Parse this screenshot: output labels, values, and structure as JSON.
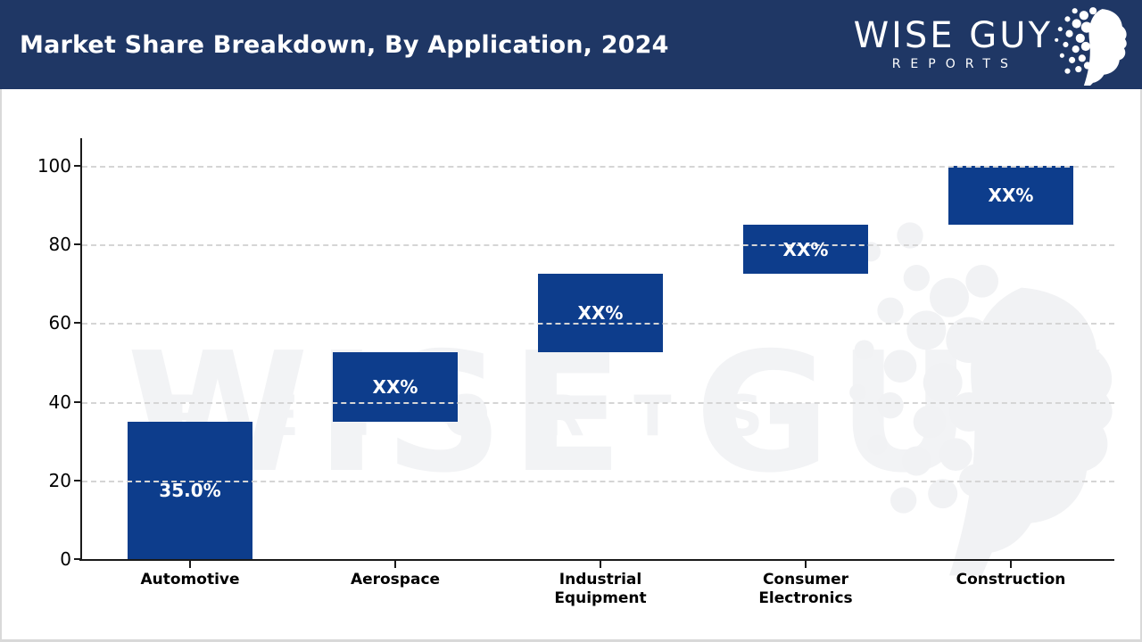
{
  "header": {
    "title": "Market Share Breakdown, By Application, 2024",
    "logo": {
      "line1": "WISE GUY",
      "line2": "REPORTS",
      "face_icon": "dotted-head-profile"
    }
  },
  "watermark": {
    "line1": "WISE GUY",
    "line2": "REPORTS",
    "face_icon": "dotted-head-profile"
  },
  "chart_data": {
    "type": "bar",
    "subtype": "waterfall",
    "title": "Market Share Breakdown, By Application, 2024",
    "categories": [
      "Automotive",
      "Aerospace",
      "Industrial\nEquipment",
      "Consumer\nElectronics",
      "Construction"
    ],
    "segments": [
      {
        "category": "Automotive",
        "start": 0,
        "end": 35,
        "label": "35.0%"
      },
      {
        "category": "Aerospace",
        "start": 35,
        "end": 52.5,
        "label": "XX%"
      },
      {
        "category": "Industrial Equipment",
        "start": 52.5,
        "end": 72.5,
        "label": "XX%"
      },
      {
        "category": "Consumer Electronics",
        "start": 72.5,
        "end": 85,
        "label": "XX%"
      },
      {
        "category": "Construction",
        "start": 85,
        "end": 100,
        "label": "XX%"
      }
    ],
    "ylim": [
      0,
      100
    ],
    "yticks": [
      0,
      20,
      40,
      60,
      80,
      100
    ],
    "grid": "horizontal-dashed, drawn above bars",
    "legend": "none",
    "xlabel": "",
    "ylabel": ""
  },
  "colors": {
    "header_bg": "#1f3765",
    "bar": "#0d3d8c",
    "bar_label": "#ffffff",
    "axis": "#1a1a1a",
    "gridline": "#d5d5d5",
    "watermark": "#f2f3f5",
    "title_text": "#ffffff",
    "tick_text": "#000000"
  }
}
